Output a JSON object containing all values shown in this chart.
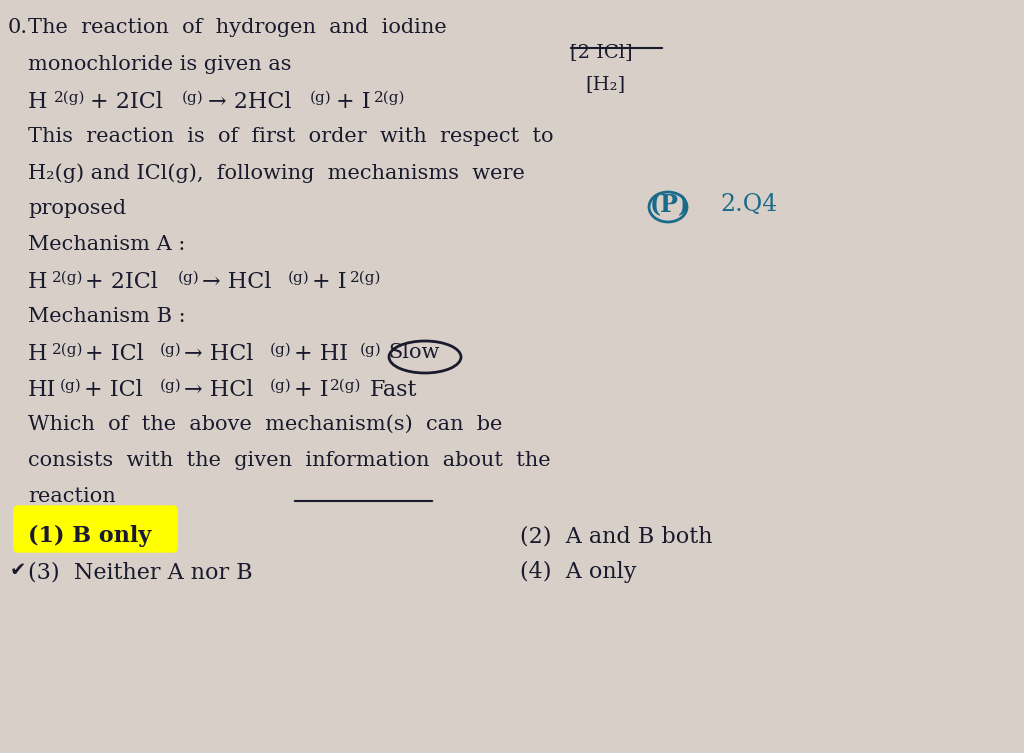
{
  "bg_color": "#d8d0c8",
  "text_color": "#1a1a2e",
  "blue_color": "#1a1a8c",
  "highlight_yellow": "#ffff00",
  "title_line1": "The  reaction  of  hydrogen  and  iodine",
  "title_line2": "monochloride is given as",
  "annotation_top": "[2 ICl]",
  "annotation_frac": "[H₂]",
  "main_reaction": "H₂(g) + 2ICl(g) → 2HCl(g) + I₂(g)",
  "desc_line1": "This  reaction  is  of  first  order  with  respect  to",
  "desc_line2": "H₂(g) and ICl(g),  following  mechanisms  were",
  "desc_line3": "proposed",
  "annot_p": "(P)",
  "annot_2q": "2.Q4",
  "mech_a_label": "Mechanism A :",
  "mech_a_eq": "H₂(g) + 2ICl(g) → HCl(g) + I₂(g)",
  "mech_b_label": "Mechanism B :",
  "mech_b_eq1": "H₂(g) + ICl(g) → HCl(g) + HI(g)",
  "mech_b_eq1_annot": "Slow",
  "mech_b_eq2": "HI(g) + ICl(g) → HCl(g) + I₂(g)  Fast",
  "question": "Which  of  the  above  mechanism(s)  can  be",
  "question2": "consists  with  the  given  information  about  the",
  "question3": "reaction",
  "opt1": "(1) B only",
  "opt2": "(2)  A and B both",
  "opt3": "(3)  Neither A nor B",
  "opt4": "(4)  A only",
  "prefix": "0."
}
